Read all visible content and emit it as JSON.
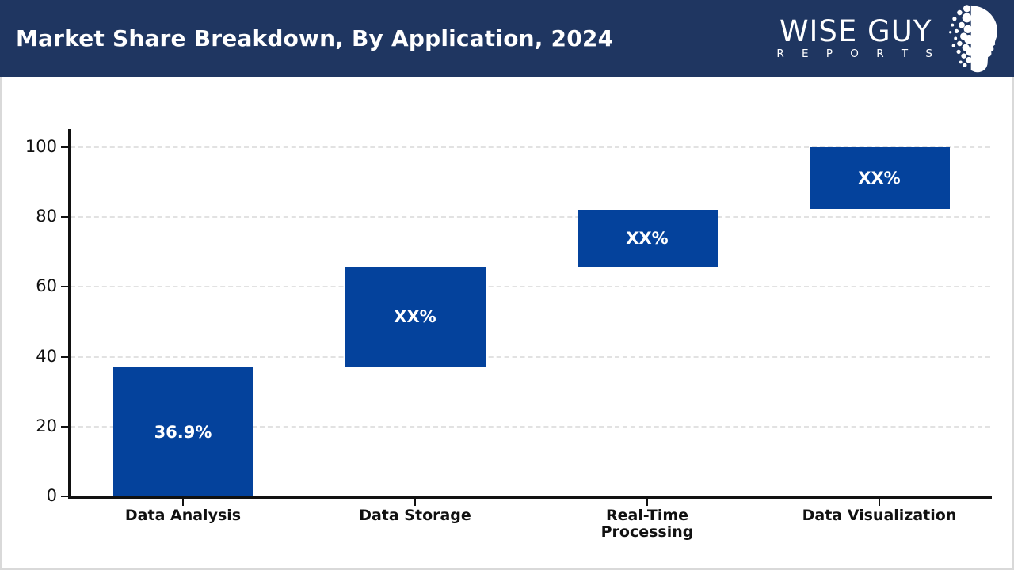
{
  "header": {
    "title": "Market Share Breakdown, By Application, 2024",
    "logo_line1": "WISE GUY",
    "logo_line2": "R E P O R T S"
  },
  "watermark": {
    "line1": "WISE GUY",
    "line2": "R E P O R T S"
  },
  "colors": {
    "header_bg": "#1f3661",
    "bar": "#04429c",
    "grid": "#e2e2e2",
    "axis": "#111111",
    "bar_label": "#ffffff",
    "watermark": "#f2f2f2",
    "frame_border": "#d9d9d9"
  },
  "chart_data": {
    "type": "bar",
    "variant": "waterfall",
    "title": "Market Share Breakdown, By Application, 2024",
    "categories": [
      "Data Analysis",
      "Data Storage",
      "Real-Time Processing",
      "Data Visualization"
    ],
    "category_labels": [
      "Data Analysis",
      "Data Storage",
      "Real-Time\nProcessing",
      "Data Visualization"
    ],
    "segments": [
      {
        "category": "Data Analysis",
        "start": 0,
        "end": 36.9,
        "label": "36.9%"
      },
      {
        "category": "Data Storage",
        "start": 37.0,
        "end": 65.8,
        "label": "XX%"
      },
      {
        "category": "Real-Time Processing",
        "start": 65.8,
        "end": 82.0,
        "label": "XX%"
      },
      {
        "category": "Data Visualization",
        "start": 82.3,
        "end": 100.0,
        "label": "XX%"
      }
    ],
    "ylim": [
      0,
      105
    ],
    "yticks": [
      0,
      20,
      40,
      60,
      80,
      100
    ],
    "xlabel": "",
    "ylabel": "",
    "grid": "horizontal-dashed",
    "legend": "none",
    "bar_color": "#04429c"
  }
}
